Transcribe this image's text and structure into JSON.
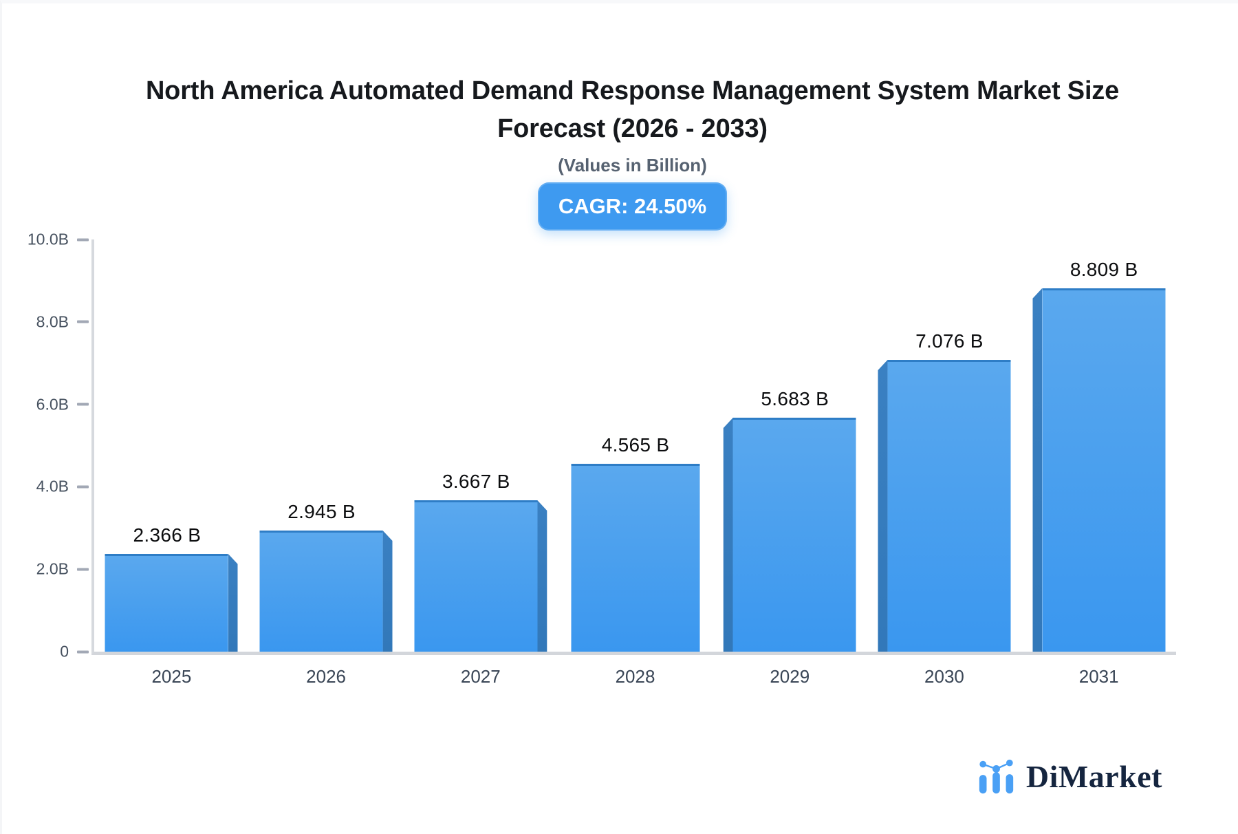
{
  "header": {
    "title_line1": "North America Automated Demand Response Management System Market Size",
    "title_line2": "Forecast (2026 - 2033)",
    "subtitle": "(Values in Billion)",
    "cagr_badge": "CAGR: 24.50%"
  },
  "chart_data": {
    "type": "bar",
    "title": "North America Automated Demand Response Management System Market Size Forecast (2026 - 2033)",
    "subtitle": "(Values in Billion)",
    "cagr_percent": 24.5,
    "categories": [
      "2025",
      "2026",
      "2027",
      "2028",
      "2029",
      "2030",
      "2031"
    ],
    "values": [
      2.366,
      2.945,
      3.667,
      4.565,
      5.683,
      7.076,
      8.809
    ],
    "value_labels": [
      "2.366 B",
      "2.945 B",
      "3.667 B",
      "4.565 B",
      "5.683 B",
      "7.076 B",
      "8.809 B"
    ],
    "unit": "B",
    "ylim": [
      0,
      10
    ],
    "yticks": [
      "0",
      "2.0B",
      "4.0B",
      "6.0B",
      "8.0B",
      "10.0B"
    ],
    "grid": false,
    "legend": "none",
    "bar_style": "3d",
    "colors": {
      "bar_top": "#5aa8ee",
      "bar_bottom": "#3a97ef",
      "bar_side": "#3278b9",
      "badge": "#3e9af0",
      "axis": "#d3d6db",
      "tick_label": "#45505e"
    }
  },
  "footer": {
    "brand": "DiMarket"
  }
}
